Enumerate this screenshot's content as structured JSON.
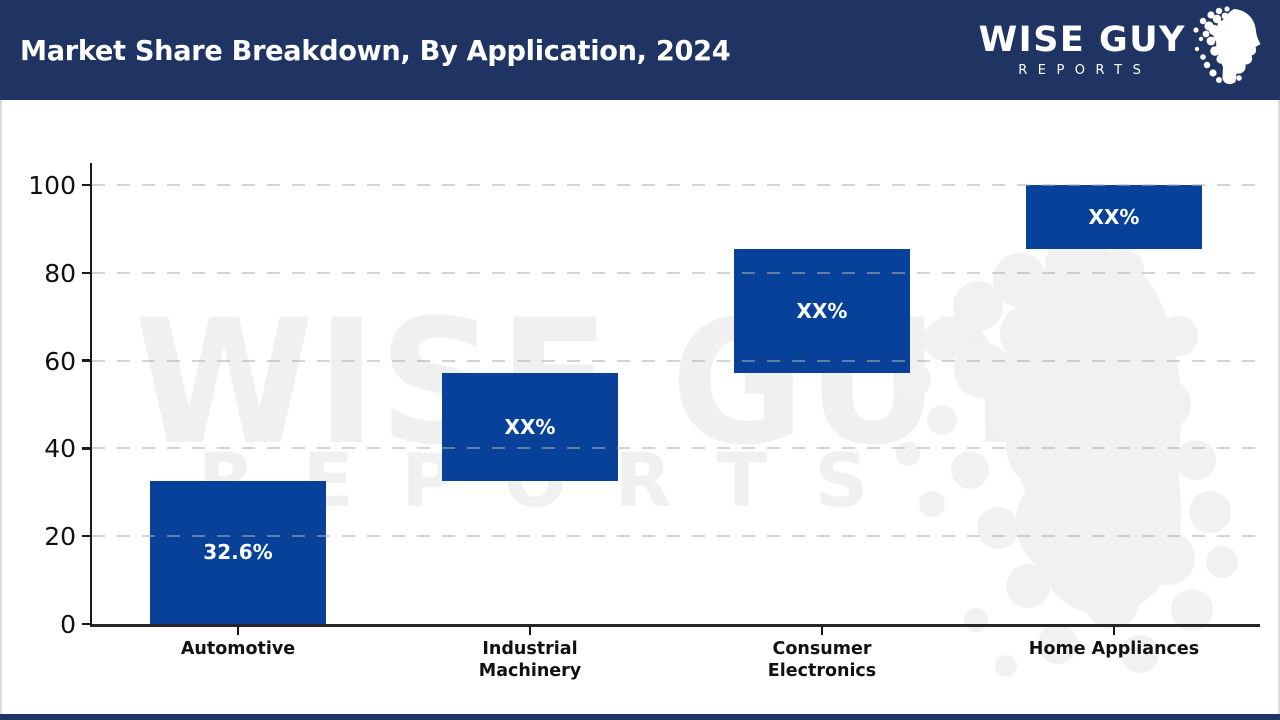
{
  "header": {
    "title": "Market Share Breakdown, By Application, 2024",
    "logo": {
      "line1": "WISE GUY",
      "line2": "REPORTS"
    }
  },
  "watermark": {
    "line1": "WISE GUY",
    "line2": "REPORTS"
  },
  "chart_data": {
    "type": "bar",
    "subtype": "waterfall",
    "title": "Market Share Breakdown, By Application, 2024",
    "categories": [
      "Automotive",
      "Industrial\nMachinery",
      "Consumer\nElectronics",
      "Home Appliances"
    ],
    "segments": [
      {
        "category": "Automotive",
        "start": 0,
        "end": 32.6,
        "label": "32.6%"
      },
      {
        "category": "Industrial Machinery",
        "start": 32.6,
        "end": 57.2,
        "label": "XX%"
      },
      {
        "category": "Consumer Electronics",
        "start": 57.2,
        "end": 85.5,
        "label": "XX%"
      },
      {
        "category": "Home Appliances",
        "start": 85.5,
        "end": 100,
        "label": "XX%"
      }
    ],
    "yticks": [
      0,
      20,
      40,
      60,
      80,
      100
    ],
    "ylim": [
      0,
      105
    ],
    "xlabel": "",
    "ylabel": "",
    "grid": "horizontal-dashed",
    "legend": "none",
    "bar_color": "#074199",
    "bar_label_color": "#ffffff",
    "bar_width_fraction": 0.6
  },
  "colors": {
    "header_bg": "#1f3462",
    "footer_bg": "#1f3462",
    "bar": "#074199",
    "axis": "#1a1a1a",
    "grid": "#c9c9c9",
    "watermark": "#f0f0f0"
  }
}
